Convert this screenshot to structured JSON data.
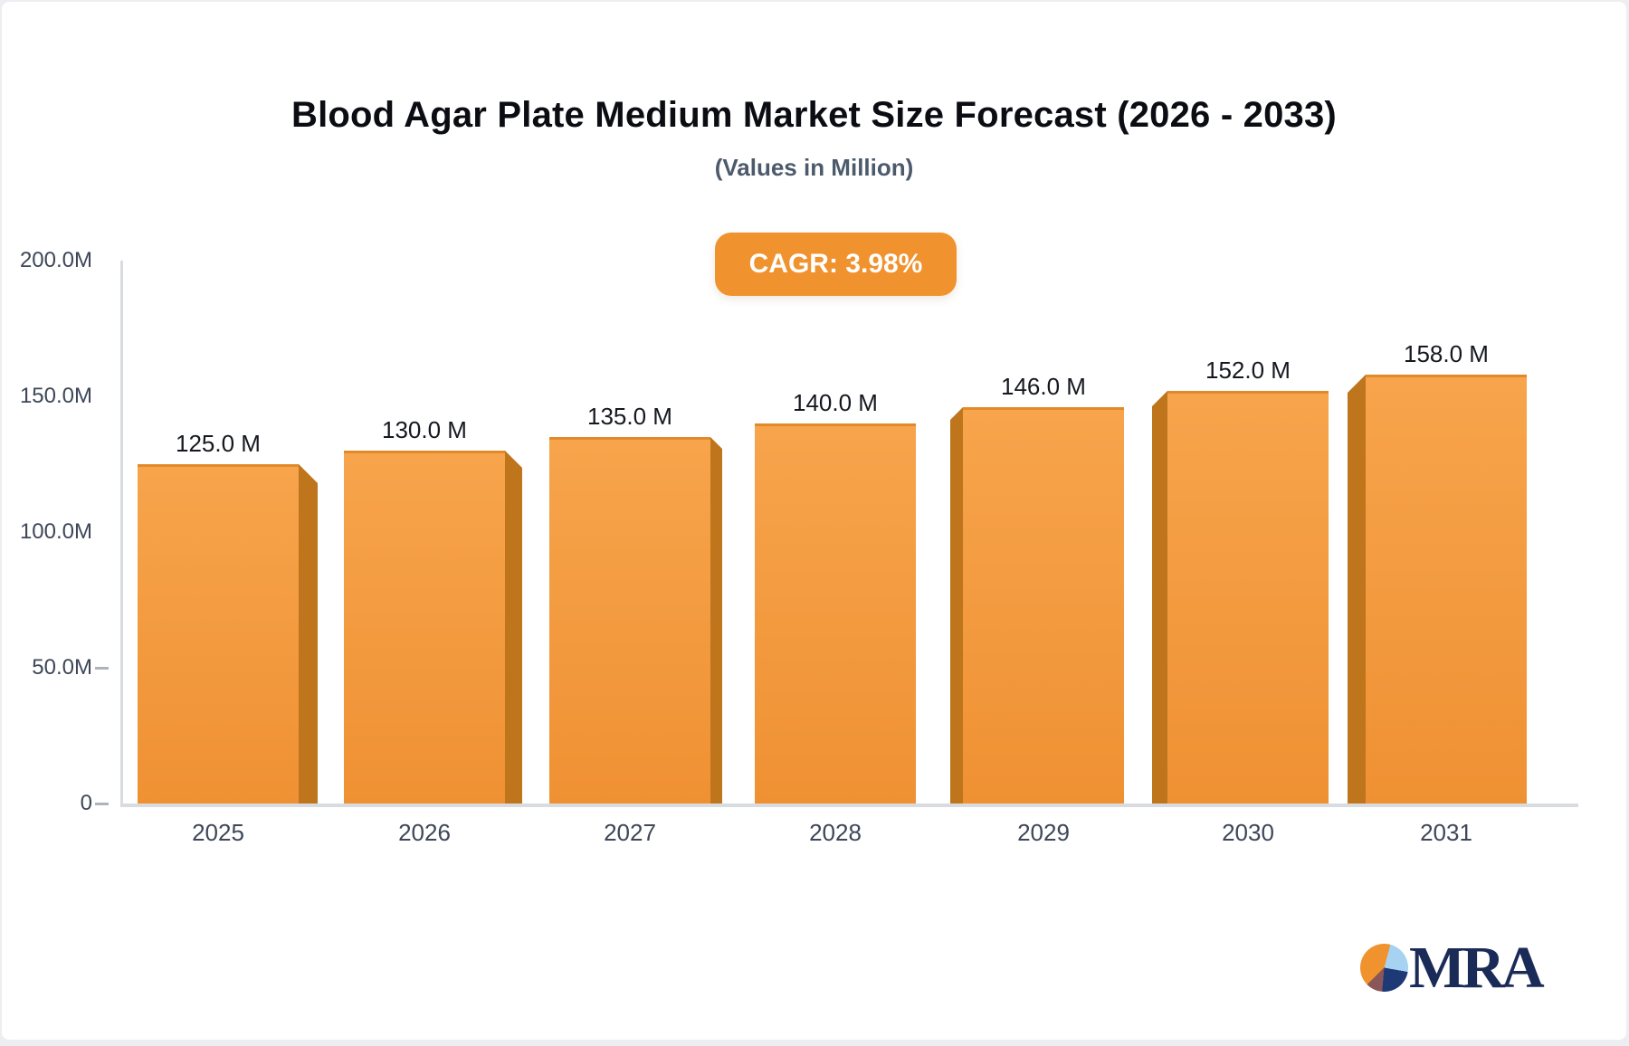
{
  "header": {
    "title": "Blood Agar Plate Medium Market Size Forecast (2026 - 2033)",
    "subtitle": "(Values in Million)"
  },
  "badge": {
    "label": "CAGR: 3.98%"
  },
  "logo": {
    "text": "MRA"
  },
  "colors": {
    "badge-bg": "#F0922D",
    "bar-top": "#F7A44C",
    "bar-bottom": "#EF9133",
    "bar-side": "#BE751C",
    "axis-text": "#3D4758",
    "value-text": "#15181F",
    "title-text": "#0B0D13",
    "subtitle-text": "#4C5A6B",
    "axis-line": "#D8DCE1",
    "tick": "#AEB4BD",
    "navy": "#1A2B57",
    "pie-orange": "#F0922D",
    "pie-blue": "#A8D2F2",
    "pie-navy": "#1E3A76",
    "pie-maroon": "#8A5657"
  },
  "chart_data": {
    "type": "bar",
    "title": "Blood Agar Plate Medium Market Size Forecast (2026 - 2033)",
    "subtitle": "(Values in Million)",
    "annotation": "CAGR: 3.98%",
    "categories": [
      "2025",
      "2026",
      "2027",
      "2028",
      "2029",
      "2030",
      "2031"
    ],
    "values": [
      125.0,
      130.0,
      135.0,
      140.0,
      146.0,
      152.0,
      158.0
    ],
    "bar_labels": [
      "125.0 M",
      "130.0 M",
      "135.0 M",
      "140.0 M",
      "146.0 M",
      "152.0 M",
      "158.0 M"
    ],
    "y_ticks": [
      {
        "label": "200.0M",
        "value": 200
      },
      {
        "label": "150.0M",
        "value": 150
      },
      {
        "label": "100.0M",
        "value": 100
      },
      {
        "label": "50.0M",
        "value": 50
      },
      {
        "label": "0",
        "value": 0
      }
    ],
    "ylim": [
      0,
      200
    ],
    "xlabel": "",
    "ylabel": "",
    "grid": false,
    "legend": null
  }
}
